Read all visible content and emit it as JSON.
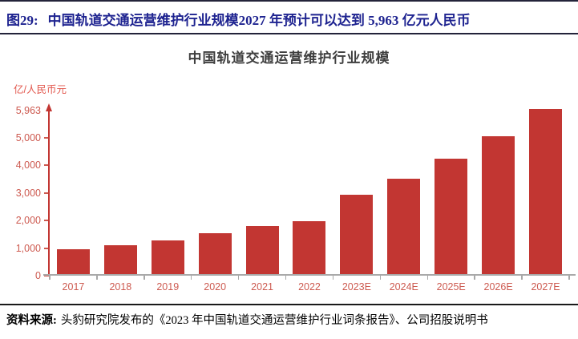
{
  "figure": {
    "caption_label": "图29:",
    "caption_text": "中国轨道交通运营维护行业规模2027 年预计可以达到 5,963 亿元人民币",
    "source_label": "资料来源:",
    "source_text": "头豹研究院发布的《2023 年中国轨道交通运营维护行业词条报告》、公司招股说明书"
  },
  "chart_data": {
    "type": "bar",
    "title": "中国轨道交通运营维护行业规模",
    "ylabel": "亿/人民币元",
    "xlabel": "",
    "categories": [
      "2017",
      "2018",
      "2019",
      "2020",
      "2021",
      "2022",
      "2023E",
      "2024E",
      "2025E",
      "2026E",
      "2027E"
    ],
    "values": [
      900,
      1040,
      1230,
      1470,
      1740,
      1900,
      2860,
      3440,
      4180,
      4980,
      5963
    ],
    "y_ticks": [
      {
        "label": "0",
        "value": 0
      },
      {
        "label": "1,000",
        "value": 1000
      },
      {
        "label": "2,000",
        "value": 2000
      },
      {
        "label": "3,000",
        "value": 3000
      },
      {
        "label": "4,000",
        "value": 4000
      },
      {
        "label": "5,000",
        "value": 5000
      },
      {
        "label": "5,963",
        "value": 5963
      }
    ],
    "ylim": [
      0,
      6200
    ],
    "grid": false,
    "legend": "none",
    "colors": {
      "bar": "#c23632",
      "y_axis": "#c23632",
      "tick_labels": "#cd5a50",
      "unit_label": "#e2574d",
      "x_axis": "#a9a9a9",
      "title": "#3f3f3f",
      "caption": "#1e2390"
    }
  }
}
